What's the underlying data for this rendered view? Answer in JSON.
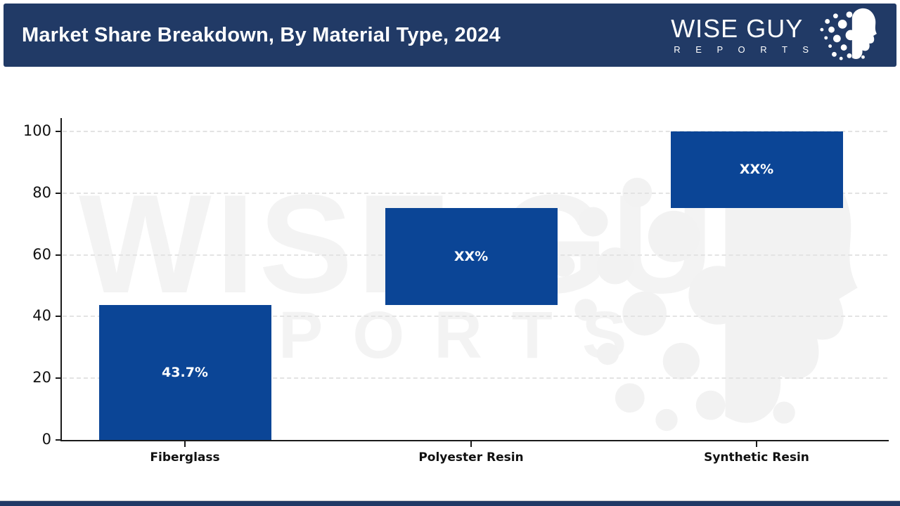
{
  "header": {
    "title": "Market Share Breakdown, By Material Type, 2024",
    "logo": {
      "line1": "WISE GUY",
      "line2": "R E P O R T S"
    }
  },
  "watermark": {
    "line1": "WISE GUY",
    "line2": "REPORTS"
  },
  "colors": {
    "header_bg": "#213a66",
    "footer_bg": "#213a66",
    "bar": "#0b4596",
    "bar_label": "#ffffff",
    "grid": "#e3e3e3",
    "axis": "#1a1a1a",
    "watermark": "#f3f3f3"
  },
  "chart_data": {
    "type": "bar",
    "subtype": "waterfall",
    "title": "Market Share Breakdown, By Material Type, 2024",
    "categories": [
      "Fiberglass",
      "Polyester Resin",
      "Synthetic Resin"
    ],
    "series": [
      {
        "name": "Market Share (%)",
        "segments": [
          {
            "category": "Fiberglass",
            "start": 0,
            "end": 43.7,
            "label": "43.7%"
          },
          {
            "category": "Polyester Resin",
            "start": 43.7,
            "end": 75.2,
            "label": "XX%"
          },
          {
            "category": "Synthetic Resin",
            "start": 75.2,
            "end": 100,
            "label": "XX%"
          }
        ]
      }
    ],
    "xlabel": "",
    "ylabel": "",
    "ylim": [
      0,
      100
    ],
    "yticks": [
      0,
      20,
      40,
      60,
      80,
      100
    ],
    "grid": "dashed-horizontal",
    "legend": "none"
  }
}
